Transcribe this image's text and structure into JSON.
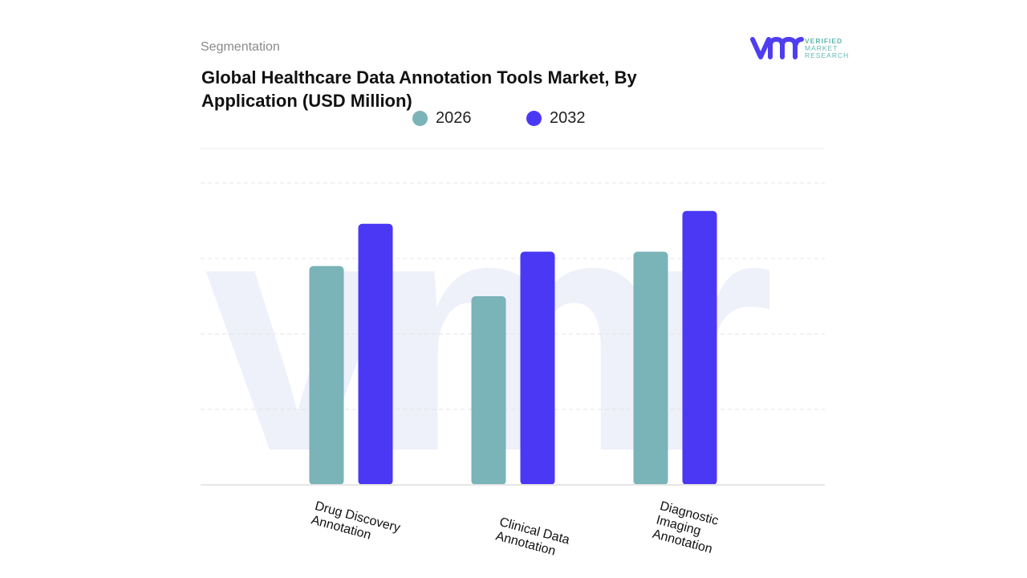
{
  "header": {
    "section": "Segmentation",
    "title": "Global Healthcare Data Annotation Tools Market, By Application (USD Million)"
  },
  "logo": {
    "mark": "vmr",
    "text": [
      "VERIFIED",
      "MARKET",
      "RESEARCH"
    ],
    "color_mark": "#4f3ef0",
    "color_text": "#5fb8b0"
  },
  "watermark": "vmr",
  "chart_data": {
    "type": "bar",
    "title": "Global Healthcare Data Annotation Tools Market, By Application (USD Million)",
    "categories": [
      "Drug Discovery Annotation",
      "Clinical Data Annotation",
      "Diagnostic Imaging Annotation"
    ],
    "series": [
      {
        "name": "2026",
        "color": "#7ab3b8",
        "values": [
          2.9,
          2.5,
          3.09
        ]
      },
      {
        "name": "2032",
        "color": "#4a38f5",
        "values": [
          3.46,
          3.09,
          3.63
        ]
      }
    ],
    "ylim": [
      0,
      4
    ],
    "y_tick_labels_shown": false,
    "grid": true,
    "legend": "top-center"
  }
}
